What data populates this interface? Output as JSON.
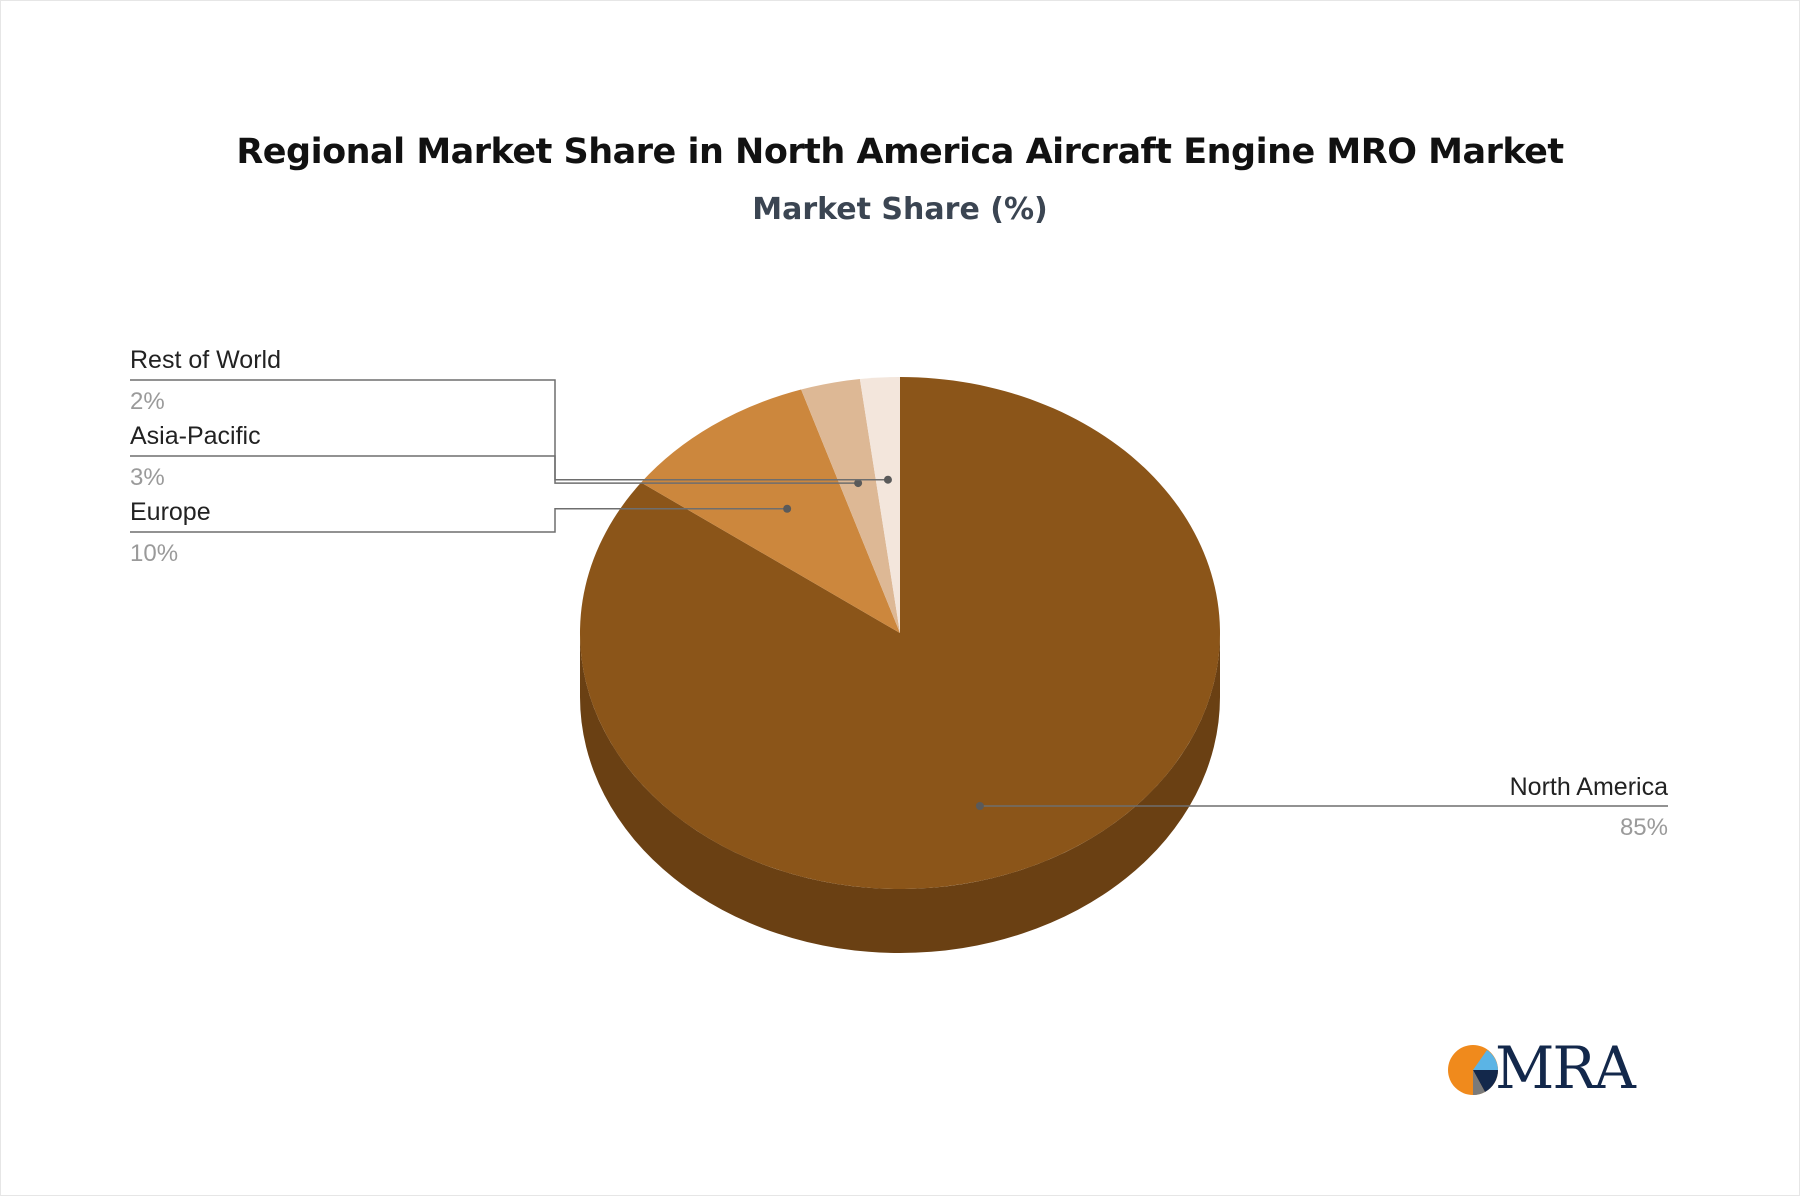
{
  "chart_data": {
    "type": "pie",
    "title": "Regional Market Share in North America Aircraft Engine MRO Market",
    "subtitle": "Market Share (%)",
    "slices": [
      {
        "label": "North America",
        "value": 85,
        "value_label": "85%",
        "color": "#8B5519"
      },
      {
        "label": "Europe",
        "value": 10,
        "value_label": "10%",
        "color": "#CC873D"
      },
      {
        "label": "Asia-Pacific",
        "value": 3,
        "value_label": "3%",
        "color": "#DDB895"
      },
      {
        "label": "Rest of World",
        "value": 2,
        "value_label": "2%",
        "color": "#F3E6DC"
      }
    ],
    "style": "3d-pie",
    "legend": "callout-labels"
  },
  "colors": {
    "side_shadow": "#6A4013",
    "leader": "#6e6e6e",
    "dot": "#5a5a5a"
  },
  "logo": {
    "text": "MRA",
    "icon": "mra-logo-icon",
    "colors": [
      "#F08A1C",
      "#13284B",
      "#5BB4E5",
      "#7A7A7A"
    ]
  }
}
